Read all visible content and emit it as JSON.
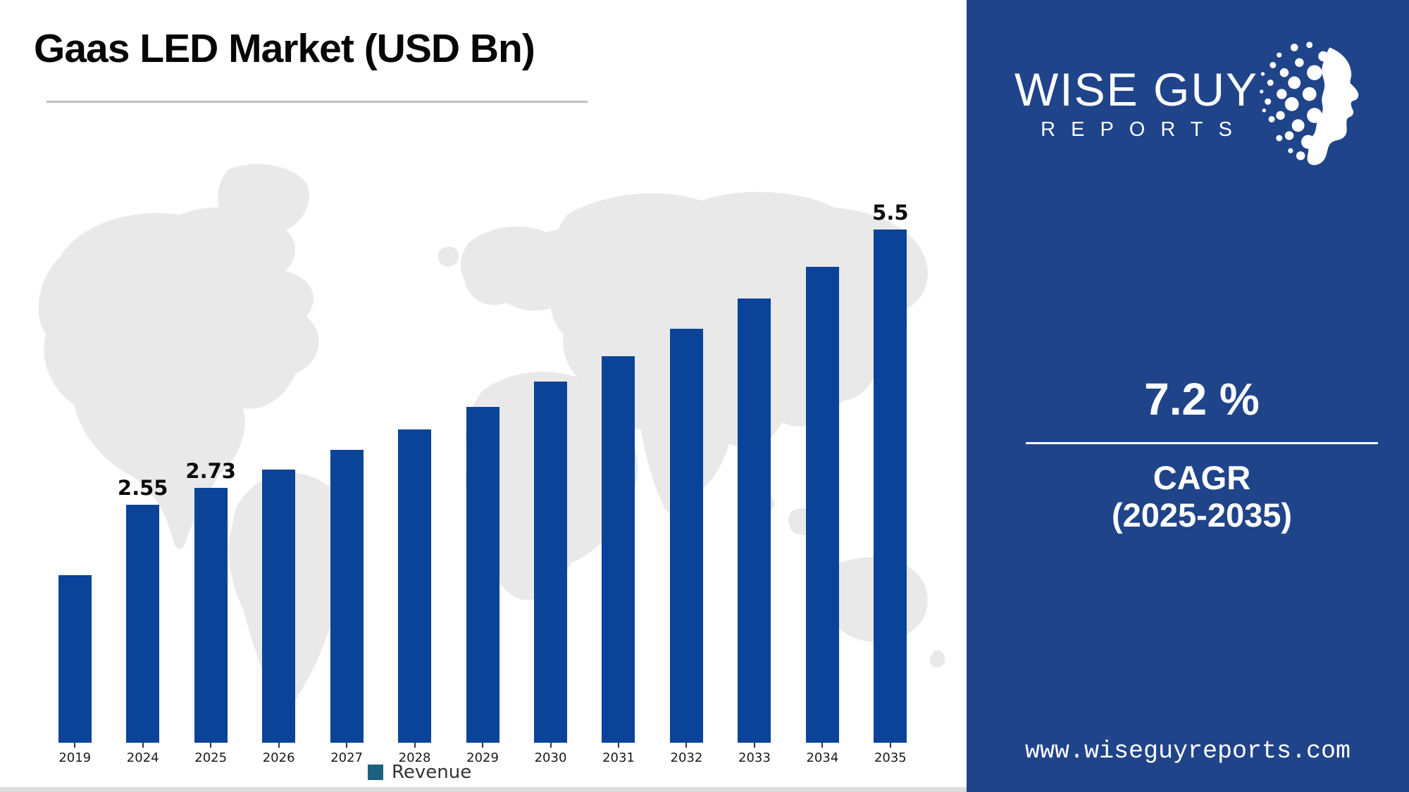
{
  "title": "Gaas LED Market (USD Bn)",
  "chart_data": {
    "type": "bar",
    "title": "Gaas LED Market (USD Bn)",
    "categories": [
      "2019",
      "2024",
      "2025",
      "2026",
      "2027",
      "2028",
      "2029",
      "2030",
      "2031",
      "2032",
      "2033",
      "2034",
      "2035"
    ],
    "values": [
      1.8,
      2.55,
      2.73,
      2.93,
      3.14,
      3.36,
      3.6,
      3.87,
      4.14,
      4.44,
      4.76,
      5.1,
      5.5
    ],
    "bar_labels": [
      "",
      "2.55",
      "2.73",
      "",
      "",
      "",
      "",
      "",
      "",
      "",
      "",
      "",
      "5.5"
    ],
    "xlabel": "",
    "ylabel": "",
    "ylim": [
      0,
      5.9
    ],
    "grid": false,
    "legend": [
      "Revenue"
    ],
    "legend_position": "bottom-center",
    "bar_color": "#0b4399",
    "legend_marker_color": "#1a6280",
    "map_color": "#e9e9e9"
  },
  "panel": {
    "background": "#20448a",
    "logo_line1": "WISE GUY",
    "logo_line2": "REPORTS",
    "cagr_value": "7.2 %",
    "cagr_label_line1": "CAGR",
    "cagr_label_line2": "(2025-2035)",
    "website": "www.wiseguyreports.com"
  }
}
